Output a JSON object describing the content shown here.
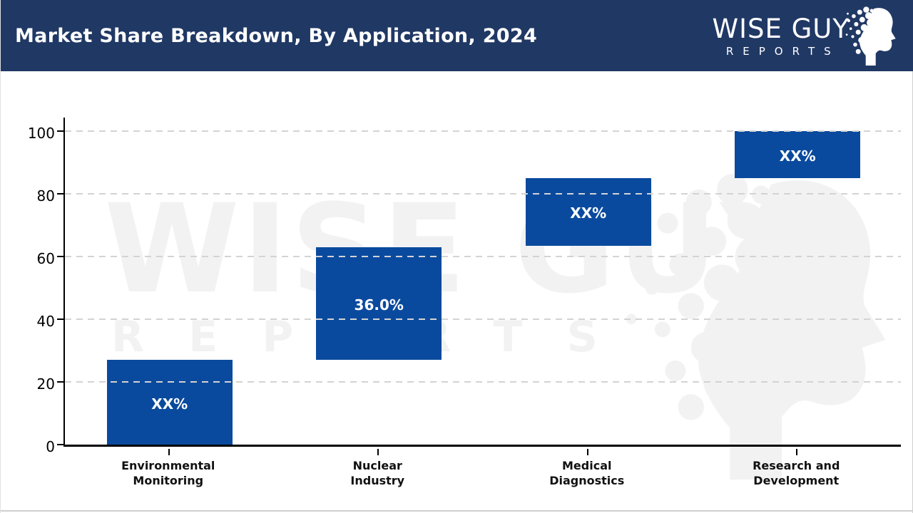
{
  "header": {
    "title": "Market Share Breakdown, By Application, 2024",
    "logo": {
      "line1": "WISE GUY",
      "line2": "REPORTS",
      "icon": "dotted-face-profile-icon"
    }
  },
  "watermark": {
    "line1": "WISE GUY",
    "line2": "REPORTS",
    "icon": "dotted-face-profile-icon"
  },
  "colors": {
    "header_bg": "#203864",
    "bar": "#0a4a9e",
    "bar_label": "#ffffff",
    "grid": "#d3d3d3",
    "axis": "#000000",
    "tick_text": "#000000",
    "watermark": "#f2f2f2",
    "title_text": "#ffffff"
  },
  "chart_data": {
    "type": "bar",
    "subtype": "waterfall",
    "title": "Market Share Breakdown, By Application, 2024",
    "categories": [
      "Environmental Monitoring",
      "Nuclear Industry",
      "Medical Diagnostics",
      "Research and Development"
    ],
    "bars": [
      {
        "category": "Environmental Monitoring",
        "label": "XX%",
        "start": 0,
        "end": 27
      },
      {
        "category": "Nuclear Industry",
        "label": "36.0%",
        "start": 27,
        "end": 63
      },
      {
        "category": "Medical Diagnostics",
        "label": "XX%",
        "start": 63.5,
        "end": 85
      },
      {
        "category": "Research and Development",
        "label": "XX%",
        "start": 85,
        "end": 100
      }
    ],
    "xlabel": "",
    "ylabel": "",
    "ylim": [
      0,
      100
    ],
    "yticks": [
      0,
      20,
      40,
      60,
      80,
      100
    ],
    "grid": "horizontal-dashed",
    "grid_above_bars": true,
    "legend": "none",
    "bar_color": "#0a4a9e",
    "value_label_color": "#ffffff"
  }
}
